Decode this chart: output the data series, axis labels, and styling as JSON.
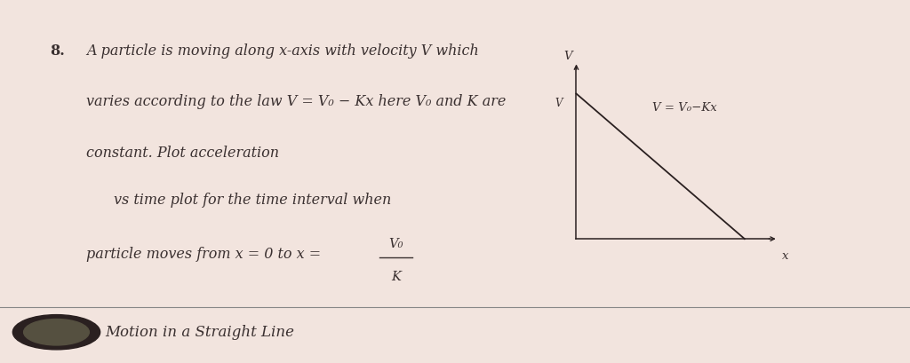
{
  "page_background": "#f2e4de",
  "question_number": "8.",
  "q_line1": "A particle is moving along x-axis with velocity V which",
  "q_line2": "varies according to the law V = V₀ − Kx here V₀ and K are",
  "q_line3": "constant. Plot acceleration",
  "q_line4": "vs time plot for the time interval when",
  "q_line5": "particle moves from x = 0 to x =",
  "frac_num": "V₀",
  "frac_den": "K",
  "graph_label": "V = V₀−Kx",
  "graph_v_label": "V",
  "graph_x_label": "x",
  "footer_text": "Motion in a Straight Line",
  "text_color": "#3a3030",
  "graph_line_color": "#2a2020",
  "footer_line_color": "#888888",
  "font_size_q": 11.5,
  "font_size_graph": 9.5,
  "font_size_footer": 12
}
